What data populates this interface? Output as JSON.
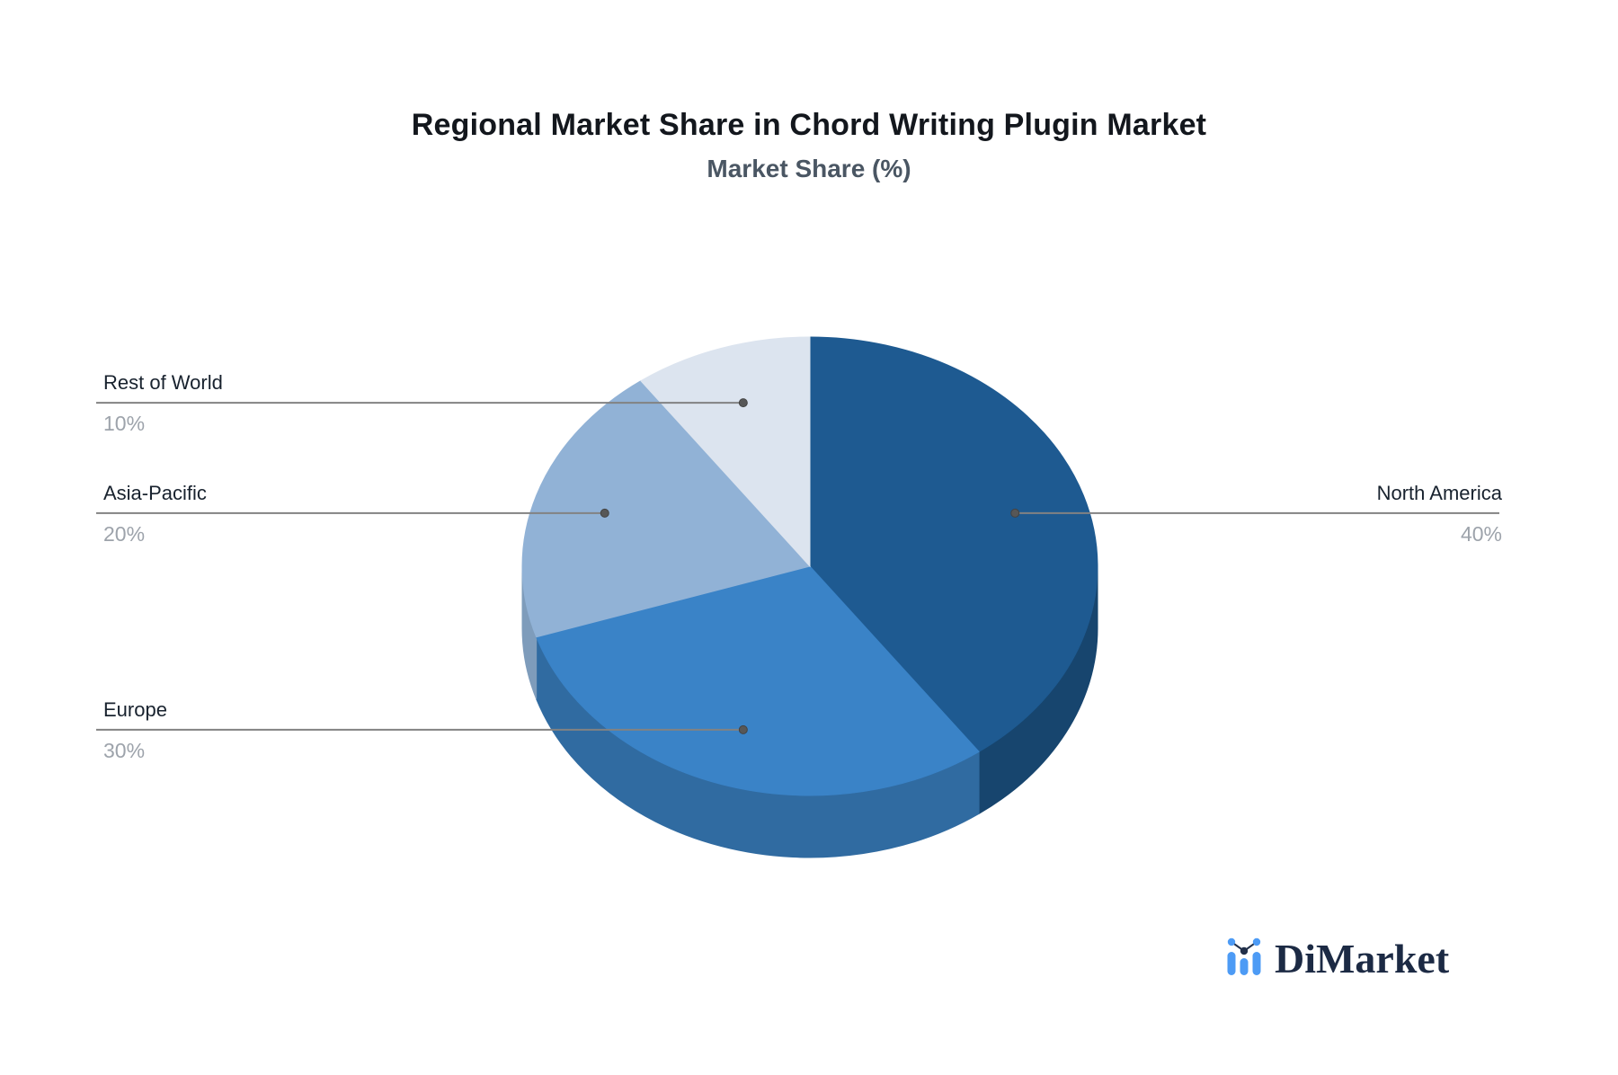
{
  "page": {
    "background": "#ffffff"
  },
  "chart_data": {
    "type": "pie",
    "style": "3d",
    "title": "Regional Market Share in Chord Writing Plugin Market",
    "subtitle": "Market Share (%)",
    "categories": [
      "North America",
      "Europe",
      "Asia-Pacific",
      "Rest of World"
    ],
    "values": [
      40,
      30,
      20,
      10
    ],
    "unit": "%",
    "value_labels": [
      "40%",
      "30%",
      "20%",
      "10%"
    ],
    "colors": [
      "#1E5A91",
      "#3A83C7",
      "#91B2D6",
      "#DCE4EF"
    ],
    "side_colors": [
      "#17456E",
      "#306BA1",
      "#7E9CBB",
      "#C9D4E4"
    ],
    "label_sides": [
      "right",
      "left",
      "left",
      "left"
    ],
    "start_angle_deg": 0,
    "direction": "clockwise",
    "legend": "none",
    "leader_line_color": "#828282",
    "leader_dot_color": "#575757",
    "label_text_color": "#18222E",
    "value_text_color": "#9DA3AB"
  },
  "logo": {
    "text": "DiMarket",
    "icon": "bar-line-chart-icon",
    "accent": "#4D9BF5",
    "text_color": "#1C2A44"
  }
}
